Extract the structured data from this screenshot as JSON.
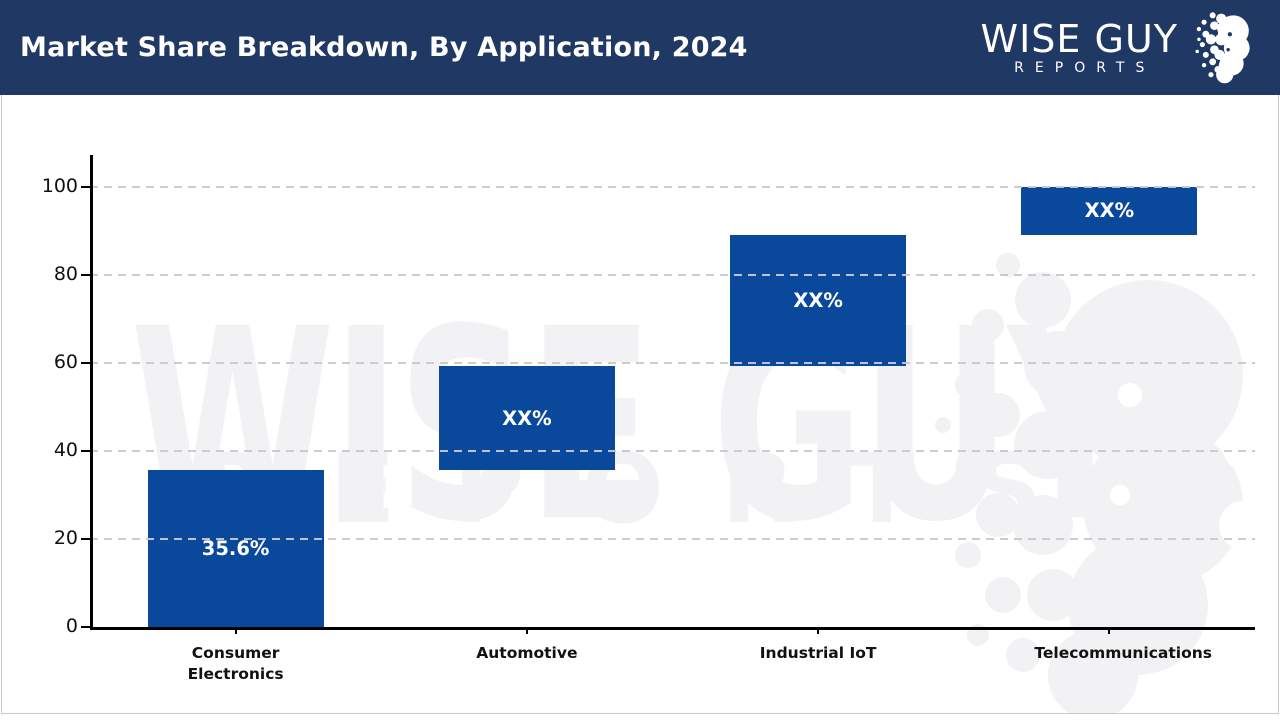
{
  "header": {
    "title": "Market Share Breakdown, By Application, 2024",
    "logo_line1": "WISE GUY",
    "logo_line2": "REPORTS",
    "bg_color": "#1f3864"
  },
  "watermark": {
    "line1": "WISE GUY",
    "line2": "REPORTS"
  },
  "chart_data": {
    "type": "bar",
    "subtype": "waterfall",
    "title": "Market Share Breakdown, By Application, 2024",
    "categories": [
      "Consumer Electronics",
      "Automotive",
      "Industrial IoT",
      "Telecommunications"
    ],
    "bars": [
      {
        "category": "Consumer Electronics",
        "label": "35.6%",
        "start": 0,
        "end": 35.6
      },
      {
        "category": "Automotive",
        "label": "XX%",
        "start": 35.6,
        "end": 59.3
      },
      {
        "category": "Industrial IoT",
        "label": "XX%",
        "start": 59.3,
        "end": 89.1
      },
      {
        "category": "Telecommunications",
        "label": "XX%",
        "start": 89.1,
        "end": 100
      }
    ],
    "yticks": [
      0,
      20,
      40,
      60,
      80,
      100
    ],
    "ylim": [
      0,
      107
    ],
    "grid": "dashed-horizontal",
    "bar_color": "#0a489b",
    "bar_label_color": "#ffffff",
    "axis_color": "#000000"
  }
}
